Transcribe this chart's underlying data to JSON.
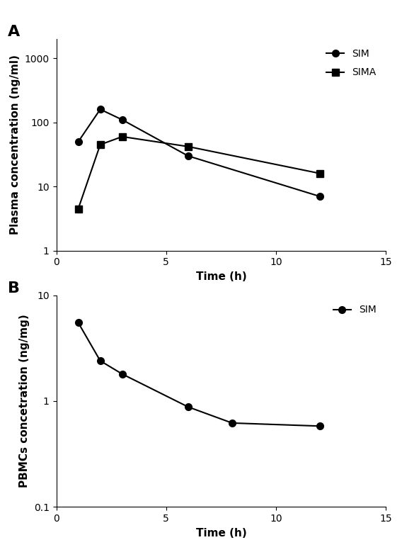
{
  "panel_A": {
    "SIM": {
      "x": [
        1,
        2,
        3,
        6,
        12
      ],
      "y": [
        50,
        160,
        110,
        30,
        7
      ],
      "marker": "o",
      "label": "SIM"
    },
    "SIMA": {
      "x": [
        1,
        2,
        3,
        6,
        12
      ],
      "y": [
        4.5,
        45,
        60,
        42,
        16
      ],
      "marker": "s",
      "label": "SIMA"
    },
    "ylabel": "Plasma concentration (ng/ml)",
    "xlabel": "Time (h)",
    "ylim": [
      1,
      2000
    ],
    "xlim": [
      0,
      15
    ],
    "panel_label": "A",
    "yticks": [
      1,
      10,
      100,
      1000
    ],
    "xticks": [
      0,
      5,
      10,
      15
    ]
  },
  "panel_B": {
    "SIM": {
      "x": [
        1,
        2,
        3,
        6,
        8,
        12
      ],
      "y": [
        5.5,
        2.4,
        1.8,
        0.88,
        0.62,
        0.58
      ],
      "marker": "o",
      "label": "SIM"
    },
    "ylabel": "PBMCs concetration (ng/mg)",
    "xlabel": "Time (h)",
    "ylim": [
      0.1,
      10
    ],
    "xlim": [
      0,
      15
    ],
    "panel_label": "B",
    "yticks": [
      0.1,
      1,
      10
    ],
    "xticks": [
      0,
      5,
      10,
      15
    ]
  },
  "line_color": "#000000",
  "marker_size": 7,
  "line_width": 1.5,
  "font_size_label": 11,
  "font_size_tick": 10,
  "font_size_panel": 16,
  "font_size_legend": 10,
  "background_color": "#ffffff"
}
